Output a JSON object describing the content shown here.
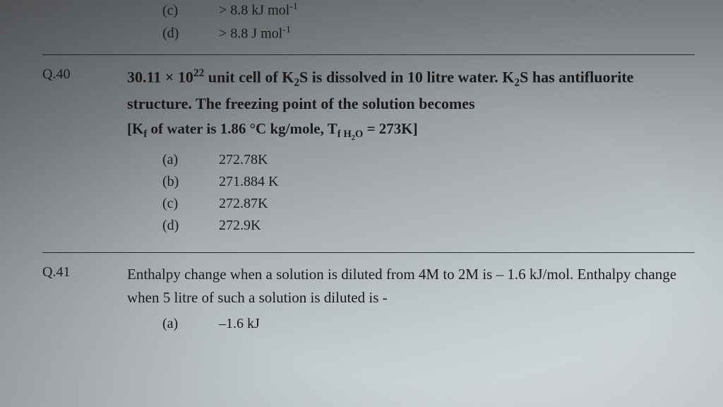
{
  "prev_question": {
    "options": [
      {
        "label": "(c)",
        "text_html": "> 8.8 kJ mol<sup>-1</sup>"
      },
      {
        "label": "(d)",
        "text_html": "> 8.8 J mol<sup>-1</sup>"
      }
    ]
  },
  "q40": {
    "number": "Q.40",
    "stem_html": "30.11 × 10<sup>22</sup> unit cell of K<sub>2</sub>S is dissolved in 10 litre water. K<sub>2</sub>S has antifluorite structure. The freezing point of the solution becomes",
    "bracket_html": "[K<sub>f</sub> of water is 1.86 °C kg/mole, T<sub>f H<sub>2</sub>O</sub> = 273K]",
    "options": [
      {
        "label": "(a)",
        "text": "272.78K"
      },
      {
        "label": "(b)",
        "text": "271.884 K"
      },
      {
        "label": "(c)",
        "text": "272.87K"
      },
      {
        "label": "(d)",
        "text": "272.9K"
      }
    ]
  },
  "q41": {
    "number": "Q.41",
    "stem_html": "Enthalpy change when a solution is diluted from 4M to 2M is – 1.6 kJ/mol. Enthalpy change when 5 litre of such a solution is diluted is -",
    "options": [
      {
        "label": "(a)",
        "text": "–1.6 kJ"
      }
    ]
  },
  "style": {
    "text_color": "#1a1a1a",
    "divider_color": "#2a2a2a",
    "font_family": "Georgia, Times New Roman, serif"
  }
}
